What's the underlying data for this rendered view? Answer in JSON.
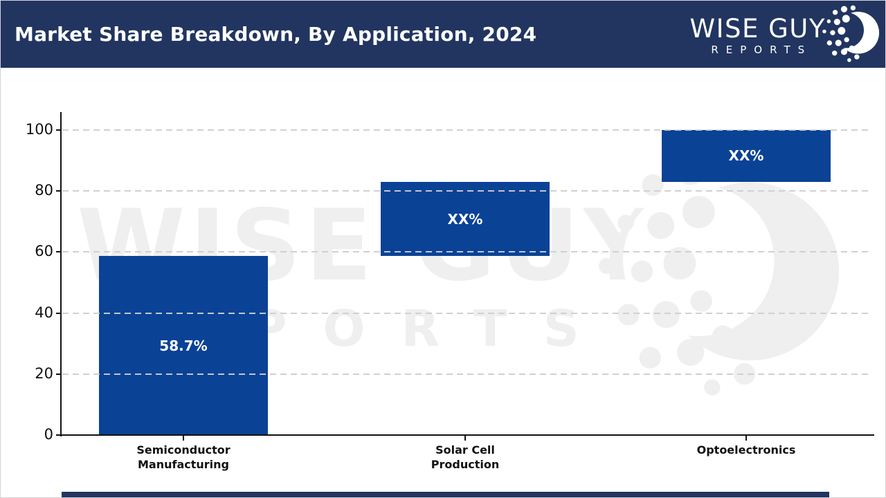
{
  "header": {
    "bg": "#213560",
    "title": "Market Share Breakdown, By Application, 2024",
    "logo": {
      "name": "WISE GUY",
      "tagline": "REPORTS"
    }
  },
  "watermark": {
    "text_top": "WISE GUY",
    "text_bottom": "REPORTS"
  },
  "chart_data": {
    "type": "bar",
    "variant": "waterfall",
    "title": "Market Share Breakdown, By Application, 2024",
    "categories": [
      {
        "line1": "Semiconductor",
        "line2": "Manufacturing"
      },
      {
        "line1": "Solar Cell",
        "line2": "Production"
      },
      {
        "line1": "Optoelectronics",
        "line2": ""
      }
    ],
    "segments": [
      {
        "start": 0,
        "end": 58.7,
        "label": "58.7%"
      },
      {
        "start": 58.7,
        "end": 83,
        "label": "XX%"
      },
      {
        "start": 83,
        "end": 100,
        "label": "XX%"
      }
    ],
    "yticks": [
      0,
      20,
      40,
      60,
      80,
      100
    ],
    "ylim": [
      0,
      107
    ],
    "xlabel": "",
    "ylabel": "",
    "legend": "none",
    "grid": {
      "horizontal": true,
      "style": "dashed",
      "color": "#d9d9d9"
    },
    "bar_color": "#0a4296",
    "bar_label_color": "#ffffff"
  },
  "footer": {
    "bar_color": "#213560"
  }
}
